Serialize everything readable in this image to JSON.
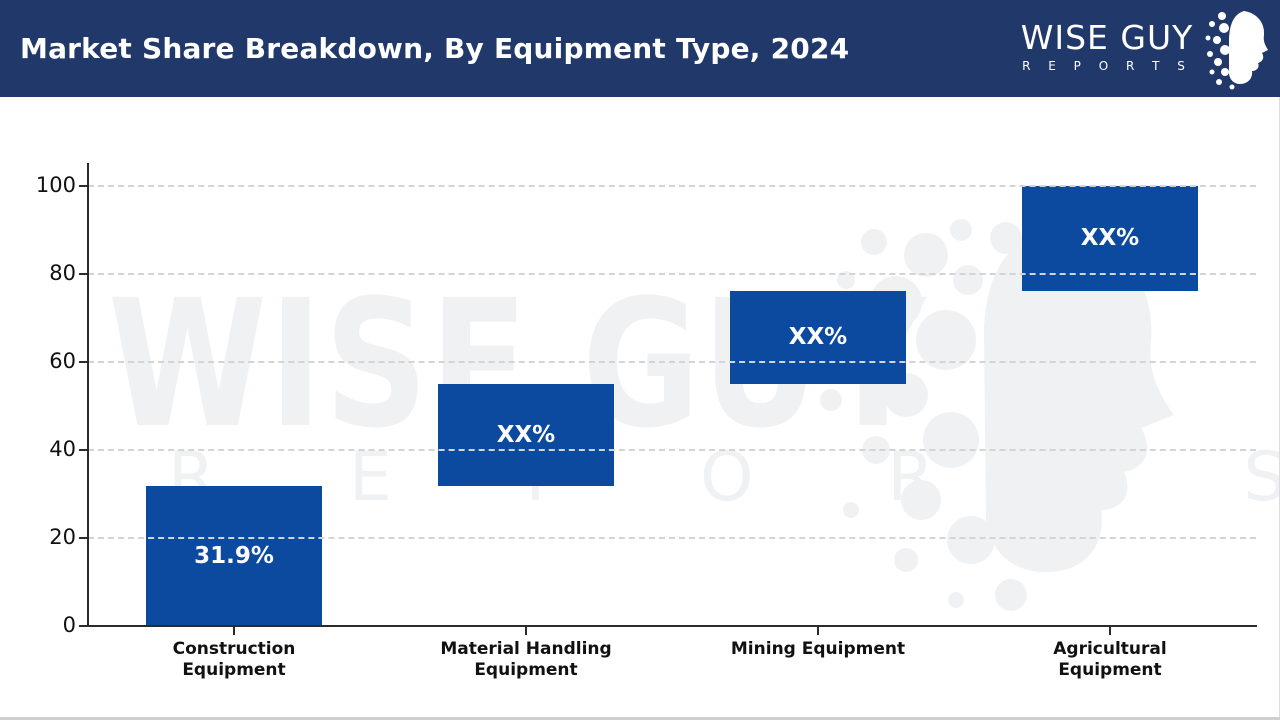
{
  "header": {
    "title": "Market Share Breakdown, By Equipment Type, 2024",
    "logo": {
      "line1": "WISE GUY",
      "line2": "R E P O R T S"
    },
    "background_color": "#21386a"
  },
  "watermark": {
    "line1": "WISE GUY",
    "line2": "R E P O R T S"
  },
  "chart_data": {
    "type": "bar",
    "subtype": "floating-waterfall",
    "title": "Market Share Breakdown, By Equipment Type, 2024",
    "categories": [
      "Construction Equipment",
      "Material Handling Equipment",
      "Mining Equipment",
      "Agricultural Equipment"
    ],
    "category_lines": [
      [
        "Construction",
        "Equipment"
      ],
      [
        "Material Handling",
        "Equipment"
      ],
      [
        "Mining Equipment"
      ],
      [
        "Agricultural",
        "Equipment"
      ]
    ],
    "segments": [
      {
        "start": 0,
        "end": 31.9,
        "label": "31.9%"
      },
      {
        "start": 31.9,
        "end": 55,
        "label": "XX%"
      },
      {
        "start": 55,
        "end": 76.2,
        "label": "XX%"
      },
      {
        "start": 76.2,
        "end": 100,
        "label": "XX%"
      }
    ],
    "yticks": [
      0,
      20,
      40,
      60,
      80,
      100
    ],
    "ylim": [
      0,
      105
    ],
    "grid": "horizontal-dashed",
    "legend": "none",
    "bar_color": "#0b4a9e",
    "bar_label_color": "#ffffff",
    "axis_color": "#2b2b2b",
    "grid_color": "#d4d4d4"
  }
}
